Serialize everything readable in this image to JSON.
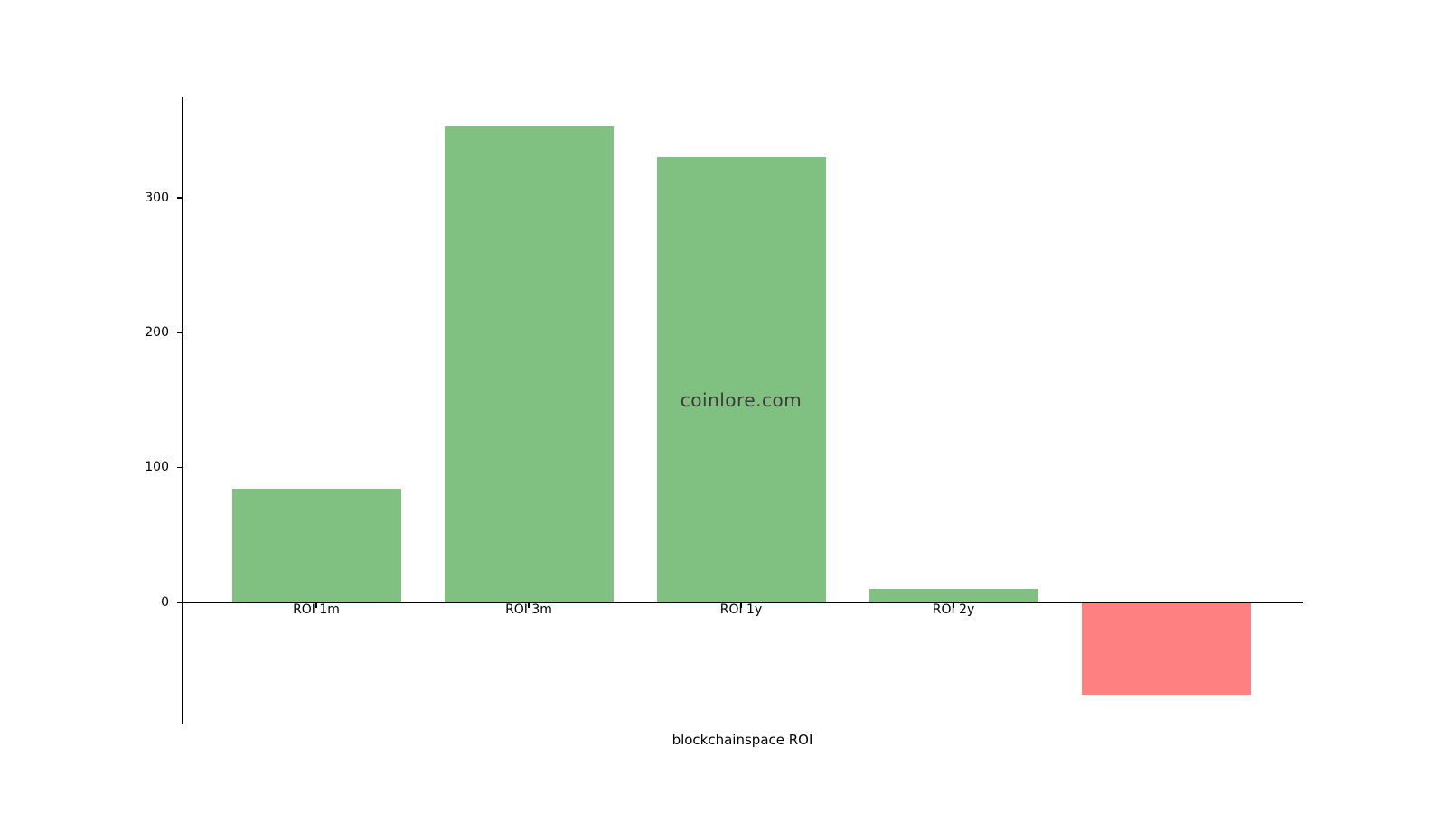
{
  "chart_data": {
    "type": "bar",
    "title": "blockchainspace ROI",
    "watermark": {
      "text": "coinlore.com",
      "color": "#3a3a3a"
    },
    "categories": [
      "ROI 1m",
      "ROI 3m",
      "ROI 1y",
      "ROI 2y",
      ""
    ],
    "values": [
      84,
      353,
      330,
      10,
      -68
    ],
    "bar_colors": [
      "#80c080",
      "#80c080",
      "#80c080",
      "#80c080",
      "#ff8080"
    ],
    "positive_color": "#80c080",
    "negative_color": "#ff8080",
    "axis_color": "#000000",
    "background_color": "#ffffff",
    "xlabel": "",
    "ylabel": "",
    "yticks": [
      0,
      100,
      200,
      300
    ],
    "ylim": [
      -90,
      375
    ],
    "grid": false,
    "legend": "none"
  }
}
